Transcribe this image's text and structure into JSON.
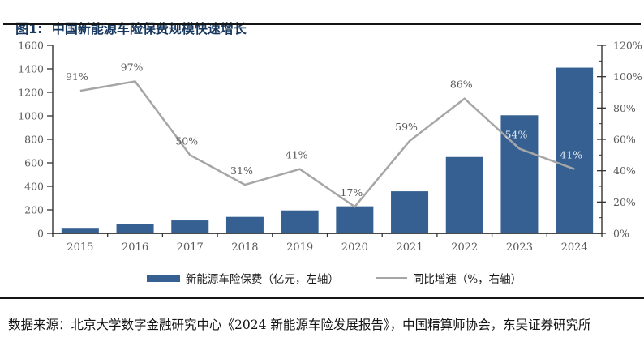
{
  "page": {
    "title": "图1:  中国新能源车险保费规模快速增长",
    "source": "数据来源：北京大学数字金融研究中心《2024 新能源车险发展报告》，中国精算师协会，东吴证券研究所"
  },
  "legend": {
    "bar": "新能源车险保费（亿元，左轴）",
    "line": "同比增速（%，右轴）"
  },
  "chart_data": {
    "type": "bar+line combo",
    "title": "中国新能源车险保费规模快速增长",
    "categories": [
      "2015",
      "2016",
      "2017",
      "2018",
      "2019",
      "2020",
      "2021",
      "2022",
      "2023",
      "2024"
    ],
    "series": [
      {
        "name": "新能源车险保费（亿元，左轴）",
        "type": "bar",
        "axis": "left",
        "values": [
          40,
          76,
          110,
          140,
          195,
          230,
          358,
          650,
          1005,
          1410
        ]
      },
      {
        "name": "同比增速（%，右轴）",
        "type": "line",
        "axis": "right",
        "values": [
          91,
          97,
          50,
          31,
          41,
          17,
          59,
          86,
          54,
          41
        ],
        "labels": [
          "91%",
          "97%",
          "50%",
          "31%",
          "41%",
          "17%",
          "59%",
          "86%",
          "54%",
          "41%"
        ],
        "label_inside_bar_indices": [
          8,
          9
        ]
      }
    ],
    "left_axis": {
      "min": 0,
      "max": 1600,
      "step": 200,
      "ticks": [
        "0",
        "200",
        "400",
        "600",
        "800",
        "1000",
        "1200",
        "1400",
        "1600"
      ]
    },
    "right_axis": {
      "min": 0,
      "max": 120,
      "step": 20,
      "minor_step": 10,
      "ticks": [
        "0%",
        "20%",
        "40%",
        "60%",
        "80%",
        "100%",
        "120%"
      ]
    },
    "grid": false,
    "legend_position": "bottom"
  },
  "colors": {
    "bar": "#366092",
    "line": "#a6a6a6",
    "axis": "#333333",
    "tick_label": "#595959",
    "data_label": "#595959",
    "data_label_on_bar": "#dce6f1",
    "title": "#17375e",
    "rule": "#141414"
  }
}
